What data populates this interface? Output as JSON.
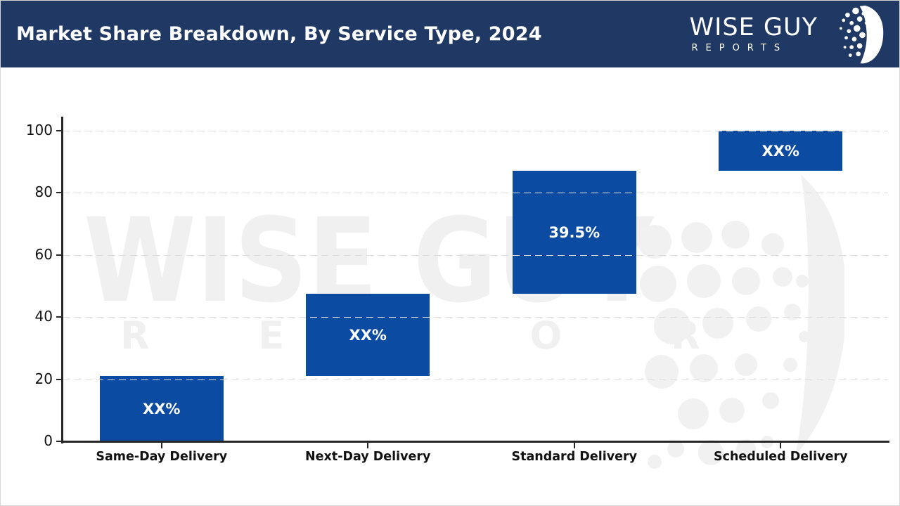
{
  "header": {
    "title": "Market Share Breakdown, By Service Type, 2024",
    "bg_color": "#1f3864",
    "logo": {
      "line1": "WISE GUY",
      "line2": "REPORTS"
    }
  },
  "watermark": {
    "line1": "WISE GUY",
    "line2": "R E P O R T S"
  },
  "chart_data": {
    "type": "bar",
    "subtype": "floating-range-waterfall",
    "title": "Market Share Breakdown, By Service Type, 2024",
    "categories": [
      "Same-Day Delivery",
      "Next-Day Delivery",
      "Standard Delivery",
      "Scheduled Delivery"
    ],
    "series": [
      {
        "name": "Market Share",
        "ranges": [
          [
            0,
            21
          ],
          [
            21,
            47.5
          ],
          [
            47.5,
            87
          ],
          [
            87,
            100
          ]
        ],
        "labels": [
          "XX%",
          "XX%",
          "39.5%",
          "XX%"
        ]
      }
    ],
    "bar_color": "#0b4ba1",
    "bar_label_color": "#ffffff",
    "yticks": [
      0,
      20,
      40,
      60,
      80,
      100
    ],
    "ylim": [
      0,
      104.5
    ],
    "xlabel": "",
    "ylabel": "",
    "grid": "horizontal-dashed",
    "gridline_color": "#dcdcdc",
    "legend": "none"
  }
}
